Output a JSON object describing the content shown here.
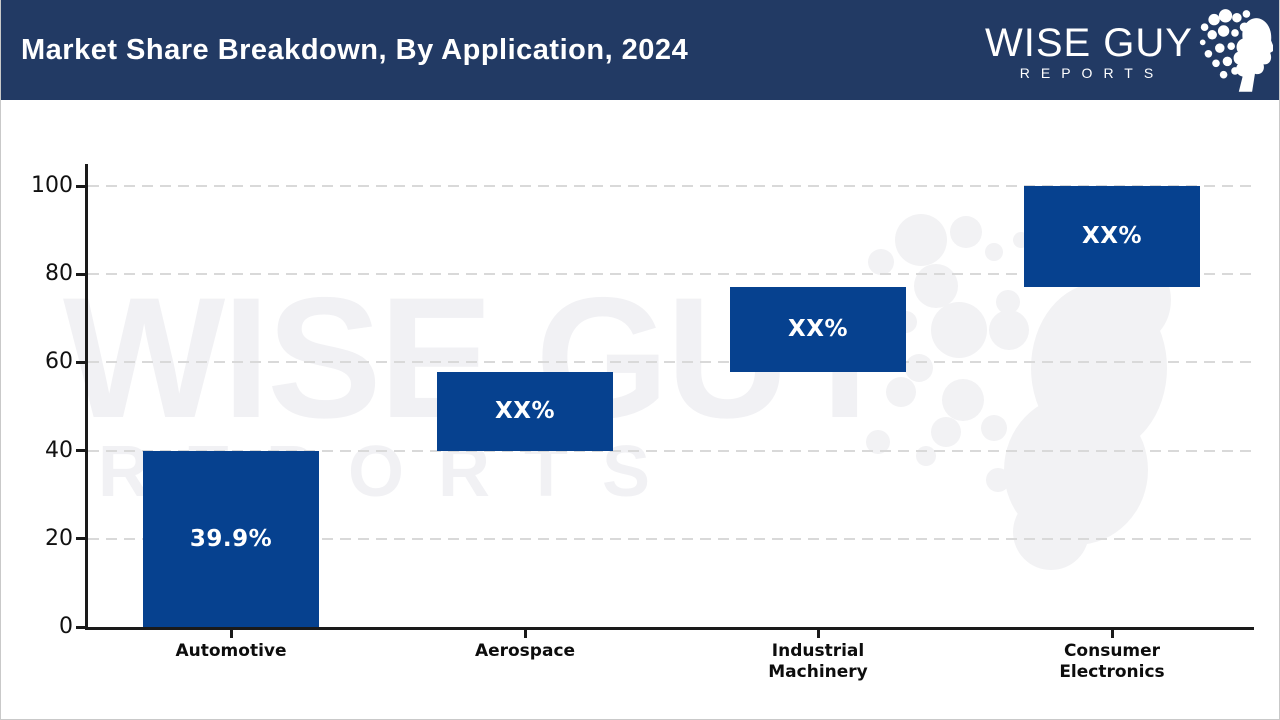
{
  "header": {
    "title": "Market Share Breakdown, By Application, 2024",
    "logo": {
      "name": "WISE GUY",
      "subname": "REPORTS",
      "icon": "dotted-head-profile-icon"
    }
  },
  "watermark": {
    "line1": "WISE GUY",
    "line2": "REPORTS"
  },
  "chart_data": {
    "type": "bar",
    "subtype": "floating-waterfall",
    "title": "Market Share Breakdown, By Application, 2024",
    "categories": [
      "Automotive",
      "Aerospace",
      "Industrial Machinery",
      "Consumer Electronics"
    ],
    "segments": [
      {
        "category": "Automotive",
        "start": 0,
        "end": 39.9,
        "label": "39.9%"
      },
      {
        "category": "Aerospace",
        "start": 39.9,
        "end": 57.9,
        "label": "XX%"
      },
      {
        "category": "Industrial Machinery",
        "start": 57.9,
        "end": 77.2,
        "label": "XX%"
      },
      {
        "category": "Consumer Electronics",
        "start": 77.2,
        "end": 100,
        "label": "XX%"
      }
    ],
    "ylim": [
      0,
      100
    ],
    "yticks": [
      0,
      20,
      40,
      60,
      80,
      100
    ],
    "grid": {
      "horizontal": true,
      "style": "dashed"
    },
    "legend": "none",
    "xlabel": "",
    "ylabel": ""
  },
  "colors": {
    "header_bg": "#223a64",
    "bar": "#06418f",
    "bar_label": "#ffffff",
    "grid": "#d9d9d9",
    "axis": "#1a1a1a",
    "watermark": "#f1f1f4",
    "page_border": "#c9c9c9"
  }
}
